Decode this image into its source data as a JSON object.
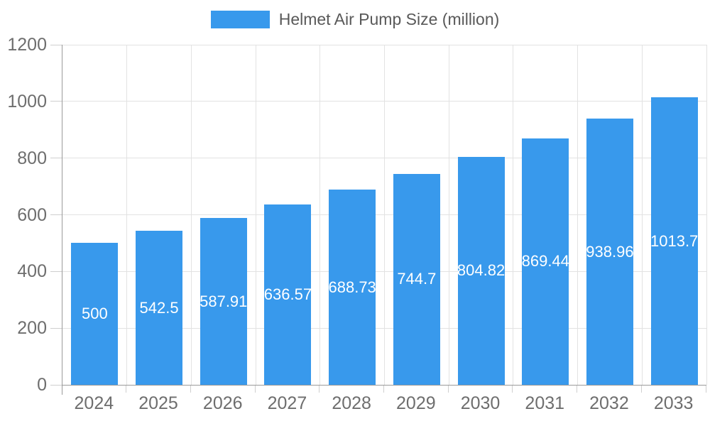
{
  "legend": {
    "label": "Helmet Air Pump Size (million)"
  },
  "colors": {
    "bar": "#3899ec",
    "grid": "#e2e2e2",
    "axis": "#9a9a9a",
    "tick": "#cfcfcf",
    "axis_text": "#6e6e6e",
    "legend_text": "#595959",
    "value_label": "#ffffff"
  },
  "chart_data": {
    "type": "bar",
    "title": "Helmet Air Pump Size (million)",
    "categories": [
      "2024",
      "2025",
      "2026",
      "2027",
      "2028",
      "2029",
      "2030",
      "2031",
      "2032",
      "2033"
    ],
    "values": [
      500,
      542.5,
      587.91,
      636.57,
      688.73,
      744.7,
      804.82,
      869.44,
      938.96,
      1013.7
    ],
    "bar_labels": [
      "500",
      "542.5",
      "587.91",
      "636.57",
      "688.73",
      "744.7",
      "804.82",
      "869.44",
      "938.96",
      "1013.7"
    ],
    "xlabel": "",
    "ylabel": "",
    "ylim": [
      0,
      1200
    ],
    "yticks": [
      0,
      200,
      400,
      600,
      800,
      1000,
      1200
    ],
    "grid": true,
    "legend_position": "top",
    "value_labels_position": "center-inside"
  }
}
